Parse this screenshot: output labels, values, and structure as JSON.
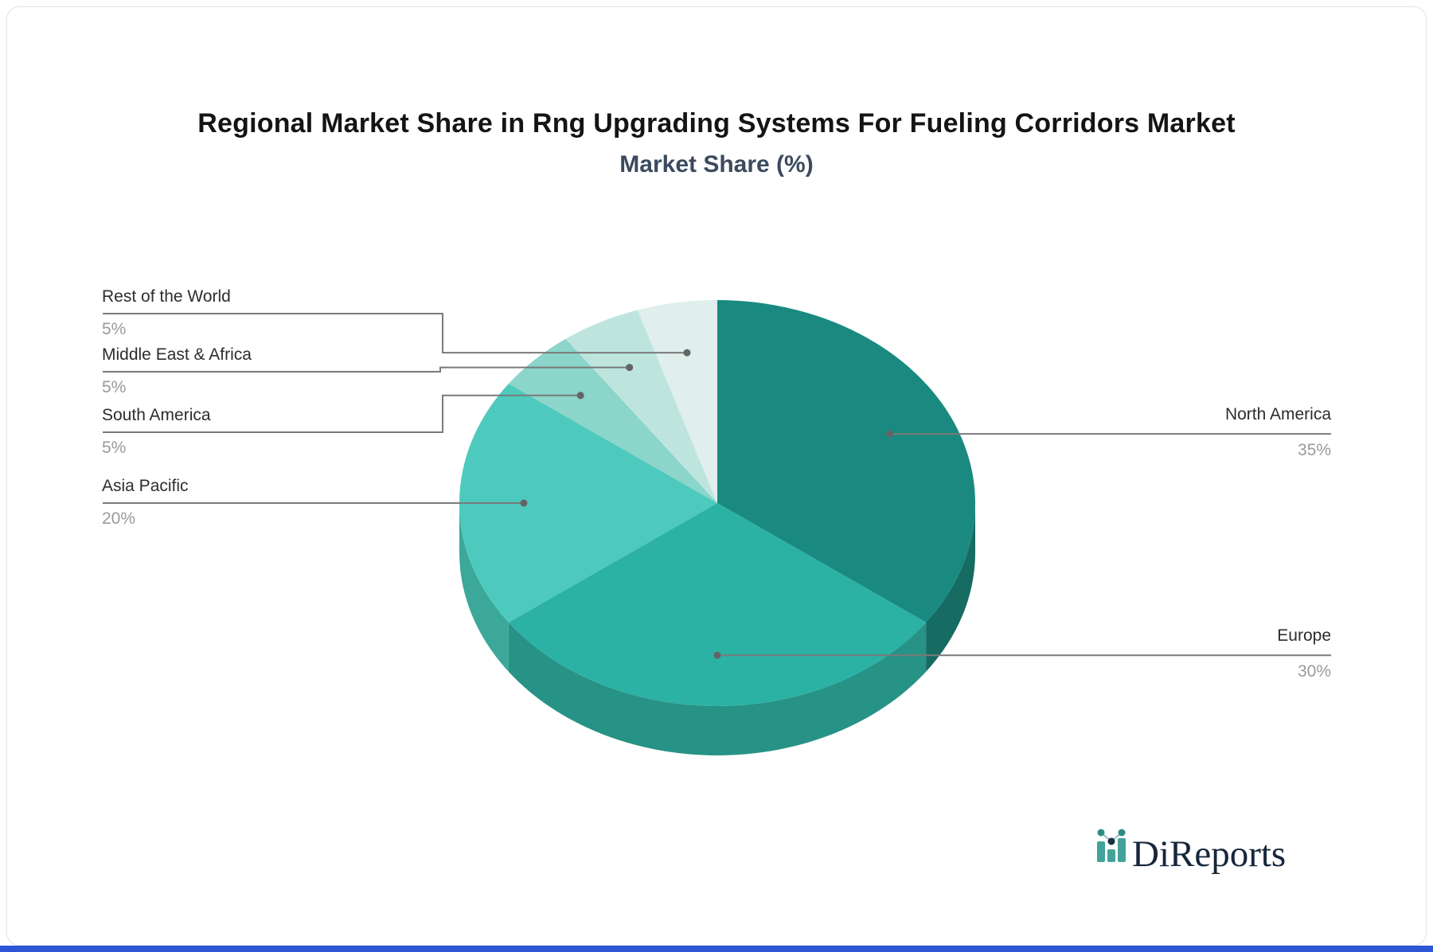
{
  "title": "Regional Market Share in Rng Upgrading Systems For Fueling Corridors Market",
  "subtitle": "Market Share (%)",
  "logo": {
    "text": "DiReports"
  },
  "chart_data": {
    "type": "pie",
    "effect": "3d",
    "title": "Regional Market Share in Rng Upgrading Systems For Fueling Corridors Market",
    "subtitle": "Market Share (%)",
    "unit": "%",
    "start_angle_deg": 0,
    "direction": "clockwise",
    "legend_position": "callout-labels",
    "labels": [
      "North America",
      "Europe",
      "Asia Pacific",
      "South America",
      "Middle East & Africa",
      "Rest of the World"
    ],
    "values": [
      35,
      30,
      20,
      5,
      5,
      5
    ],
    "display_values": [
      "35%",
      "30%",
      "20%",
      "5%",
      "5%",
      "5%"
    ],
    "colors": [
      "#1a8a80",
      "#2bb2a5",
      "#4dcabd",
      "#8bd5ca",
      "#bde5de",
      "#e0eeec"
    ],
    "side_colors": [
      "#166b63",
      "#279286",
      "#3ba89a",
      "#8bd5ca",
      "#bde5de",
      "#e0eeec"
    ],
    "leader_line_color": "#7a7a7a",
    "leader_dot_color": "#646464",
    "accent_bar_color": "#2e55d6"
  }
}
